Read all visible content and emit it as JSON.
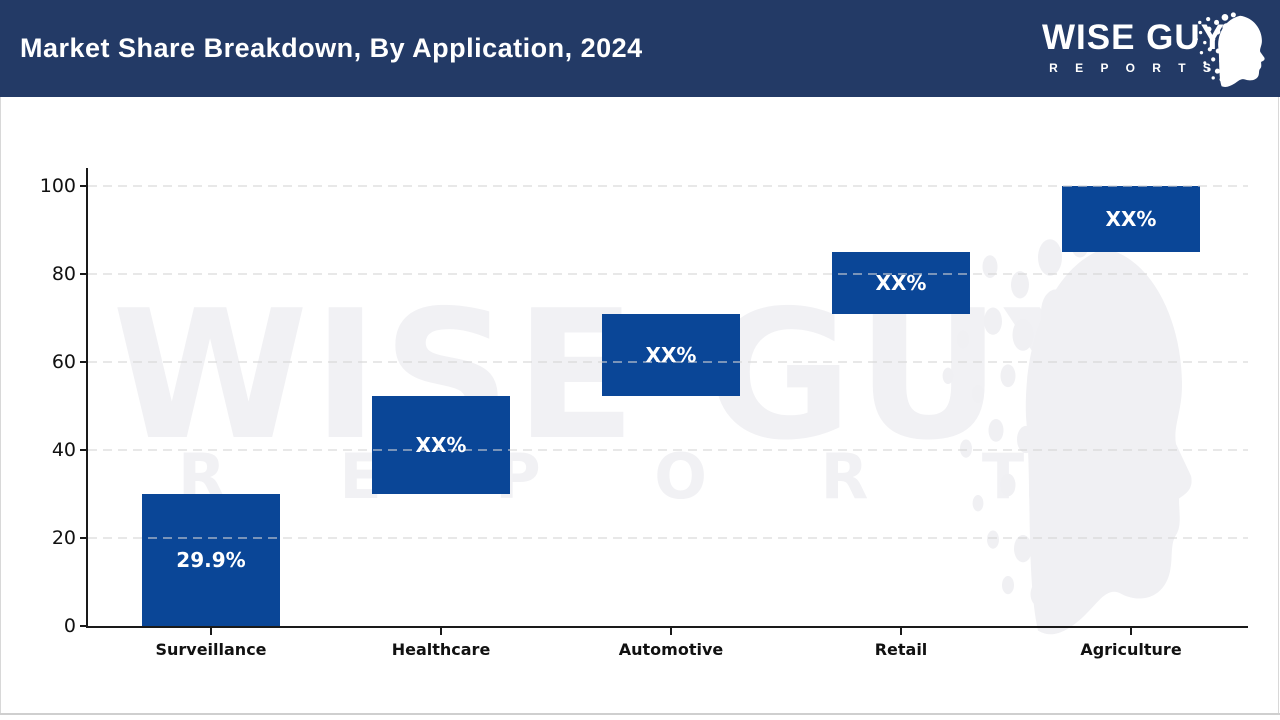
{
  "header": {
    "title": "Market Share Breakdown, By Application, 2024",
    "logo": {
      "brand": "WISE GUY",
      "sub": "R E P O R T S",
      "icon": "dotted-head-profile"
    }
  },
  "watermark": {
    "line1": "WISE GUY",
    "line2": "R E P O R T S",
    "icon": "dotted-head-profile"
  },
  "chart_data": {
    "type": "bar",
    "subtype": "waterfall",
    "title": "Market Share Breakdown, By Application, 2024",
    "unit": "percent",
    "categories": [
      "Surveillance",
      "Healthcare",
      "Automotive",
      "Retail",
      "Agriculture"
    ],
    "segments": [
      {
        "category": "Surveillance",
        "start": 0,
        "end": 29.9,
        "label": "29.9%"
      },
      {
        "category": "Healthcare",
        "start": 29.9,
        "end": 52.2,
        "label": "XX%"
      },
      {
        "category": "Automotive",
        "start": 52.2,
        "end": 71,
        "label": "XX%"
      },
      {
        "category": "Retail",
        "start": 71,
        "end": 85,
        "label": "XX%"
      },
      {
        "category": "Agriculture",
        "start": 85,
        "end": 100,
        "label": "XX%"
      }
    ],
    "yticks": [
      0,
      20,
      40,
      60,
      80,
      100
    ],
    "ylim": [
      0,
      104
    ],
    "grid": true,
    "legend": "none",
    "bar_color": "#0a4697",
    "bar_label_color": "#ffffff",
    "axis_color": "#1a1a1a",
    "header_bg": "#233a66"
  }
}
